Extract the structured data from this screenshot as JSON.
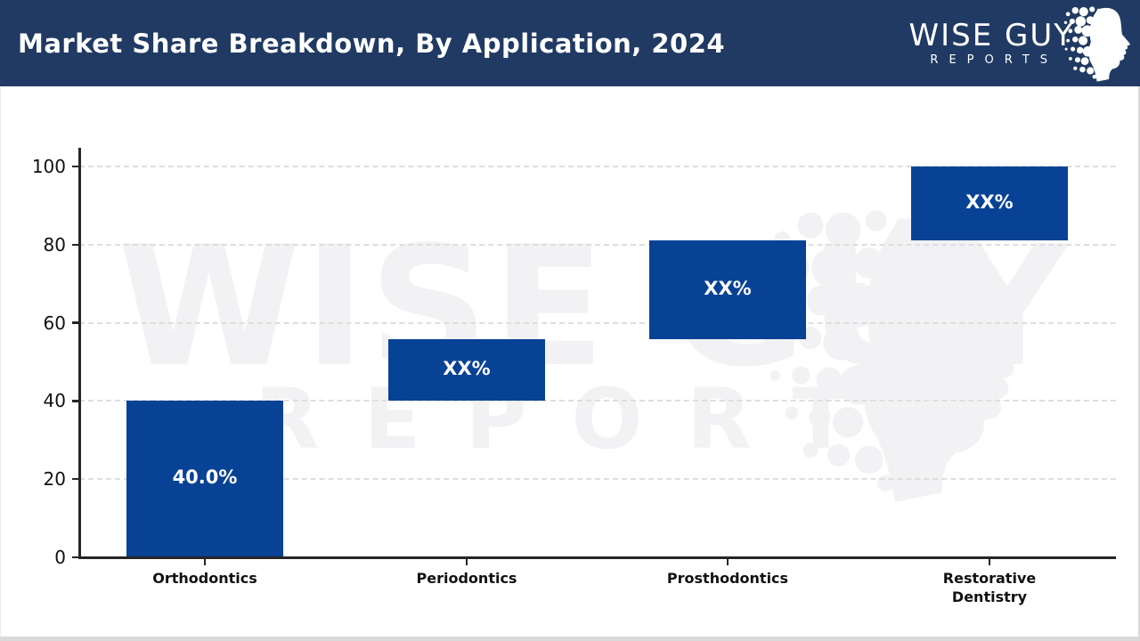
{
  "header": {
    "title": "Market Share Breakdown, By Application, 2024",
    "logo": {
      "wordmark": "WISE GUY",
      "subtext": "REPORTS"
    }
  },
  "watermark": {
    "wordmark": "WISE GUY",
    "subtext": "REPORTS"
  },
  "chart_data": {
    "type": "bar",
    "subtype": "waterfall-stacked-market-share",
    "title": "Market Share Breakdown, By Application, 2024",
    "categories": [
      "Orthodontics",
      "Periodontics",
      "Prosthodontics",
      "Restorative Dentistry"
    ],
    "segments": [
      {
        "category": "Orthodontics",
        "start": 0,
        "end": 40,
        "label": "40.0%"
      },
      {
        "category": "Periodontics",
        "start": 40,
        "end": 55.8,
        "label": "XX%"
      },
      {
        "category": "Prosthodontics",
        "start": 55.8,
        "end": 81,
        "label": "XX%"
      },
      {
        "category": "Restorative Dentistry",
        "start": 81,
        "end": 100,
        "label": "XX%"
      }
    ],
    "y_ticks": [
      0,
      20,
      40,
      60,
      80,
      100
    ],
    "ylim": [
      0,
      100
    ],
    "xlabel": "",
    "ylabel": "",
    "grid": "horizontal-dashed",
    "legend": null
  },
  "colors": {
    "header_bg": "#203a63",
    "bar": "#084294",
    "grid": "#dedede",
    "axis": "#262626",
    "watermark": "#f2f2f4",
    "tick_text": "#111111",
    "value_label": "#ffffff",
    "bottom_strip": "#d9d9d9"
  }
}
